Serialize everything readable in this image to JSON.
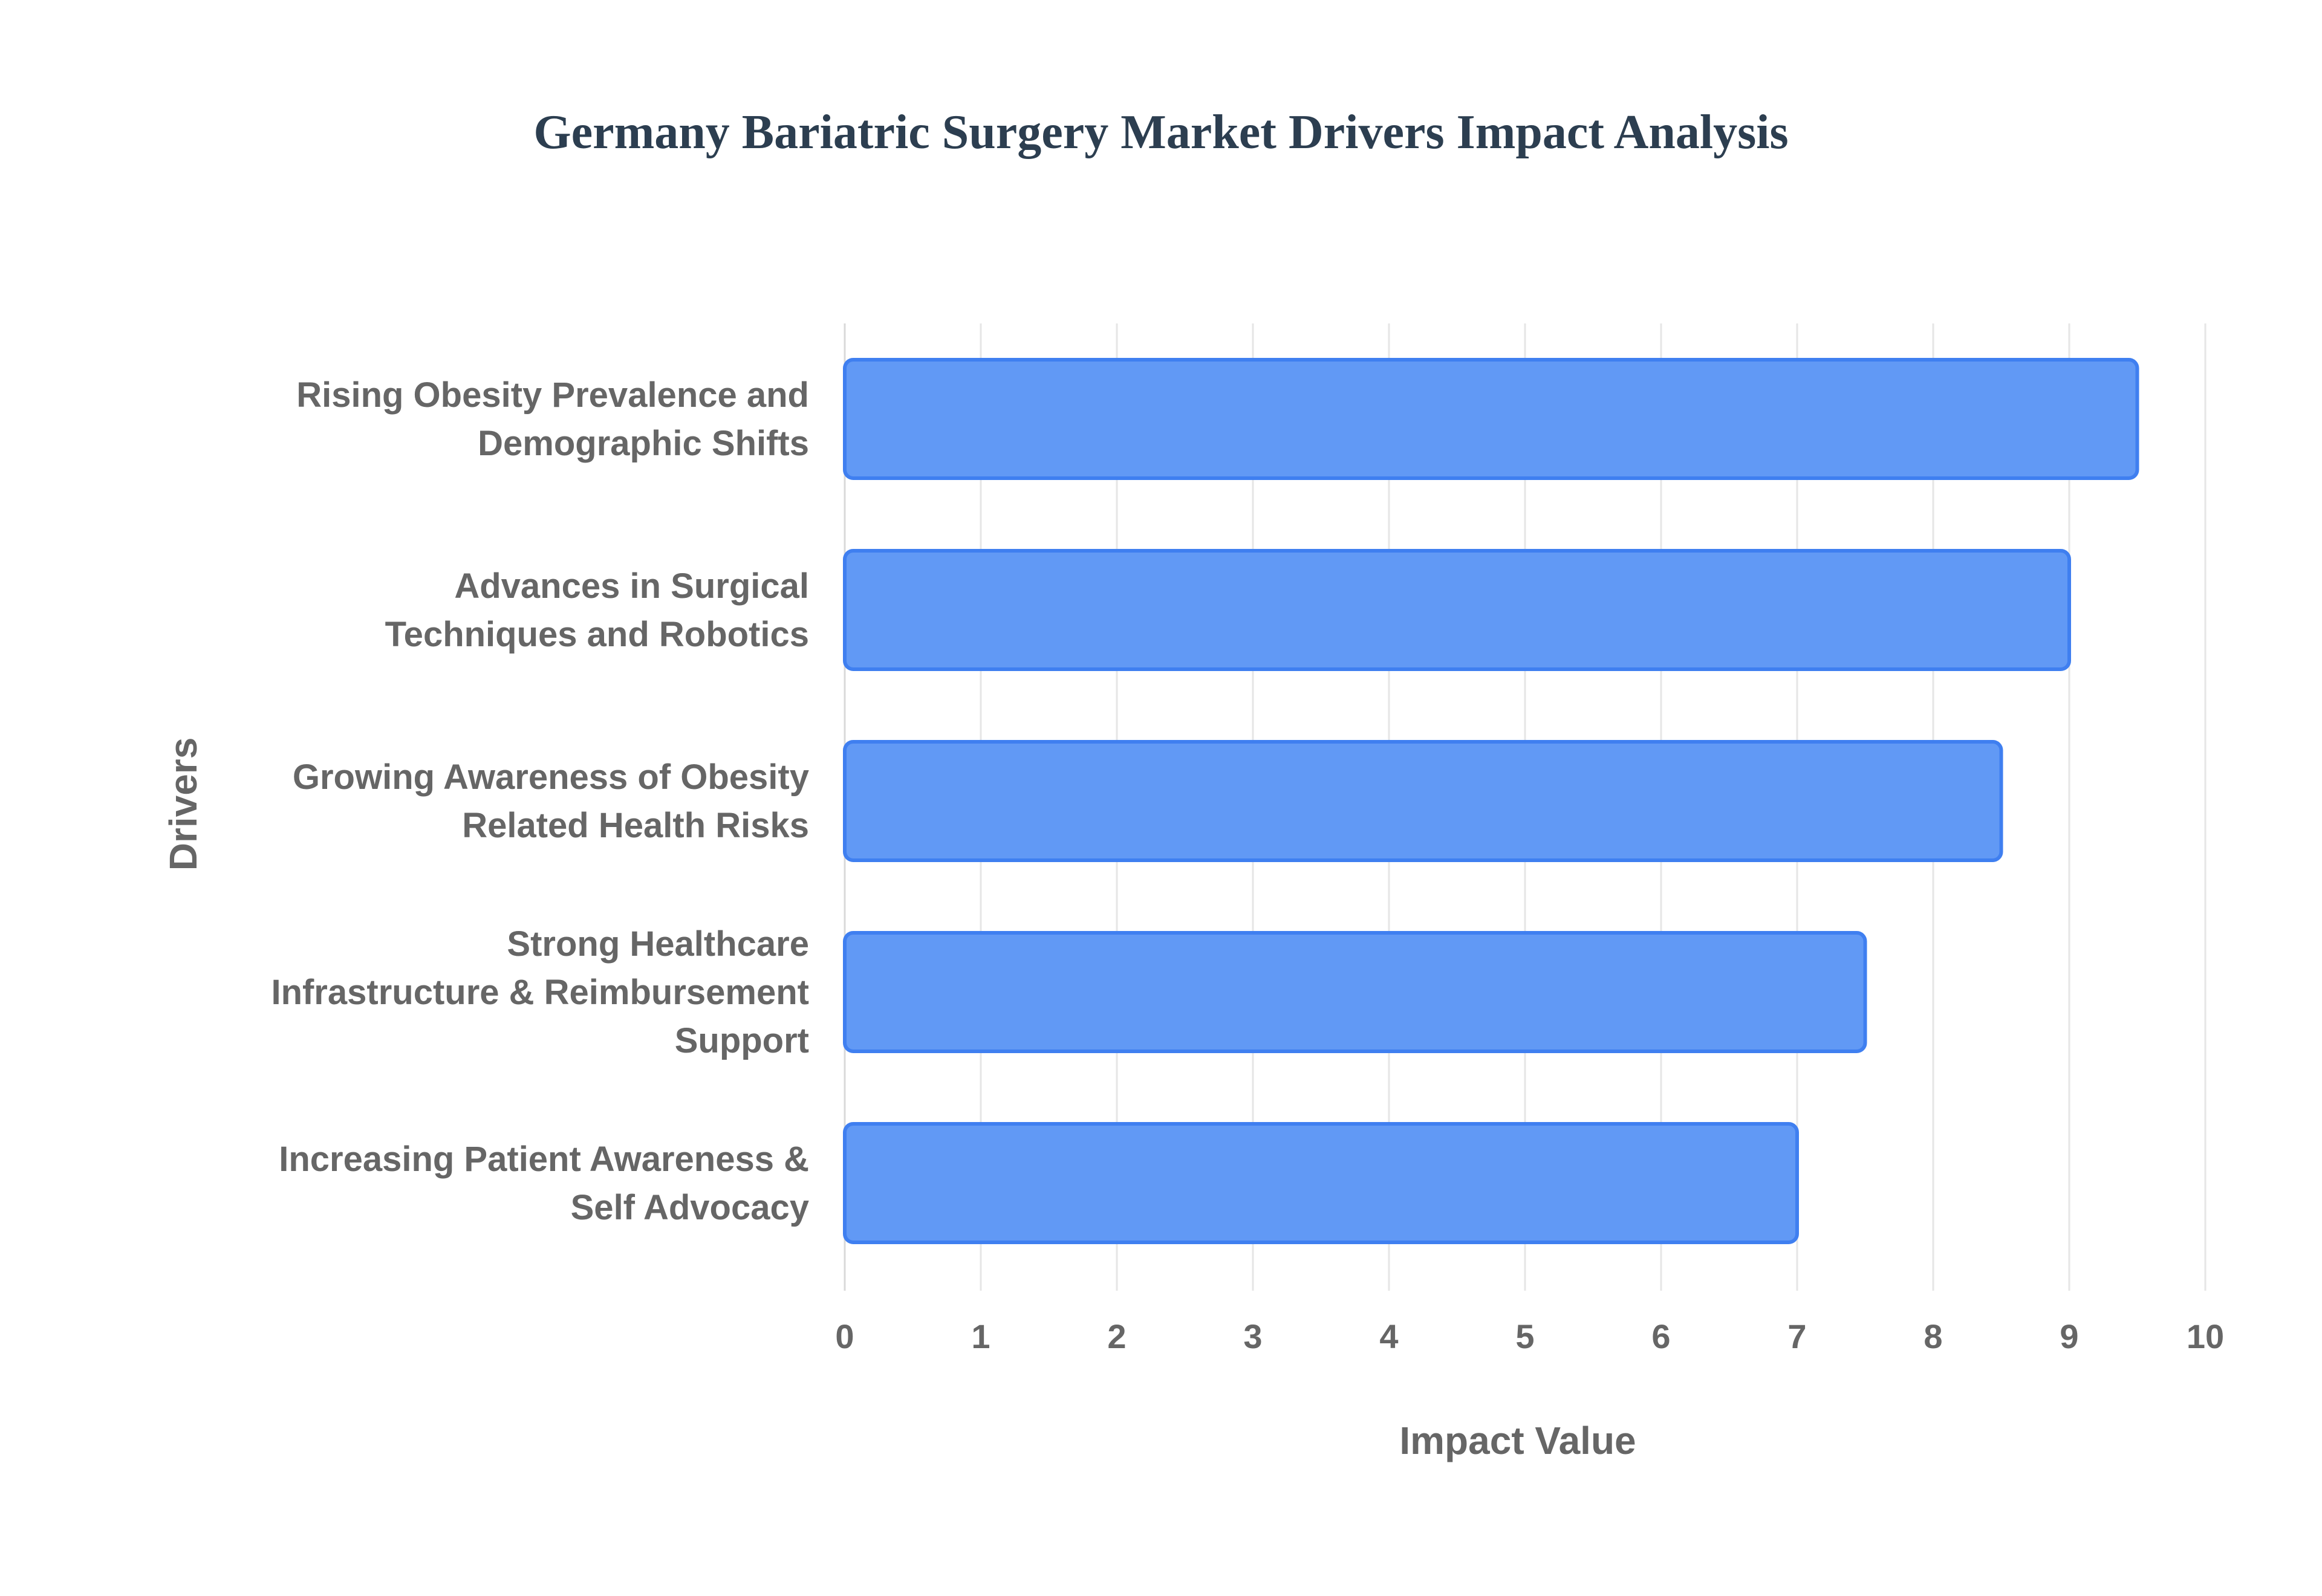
{
  "chart_data": {
    "type": "bar",
    "orientation": "horizontal",
    "title": "Germany Bariatric Surgery Market Drivers Impact Analysis",
    "xlabel": "Impact Value",
    "ylabel": "Drivers",
    "xlim": [
      0,
      10
    ],
    "x_ticks": [
      "0",
      "1",
      "2",
      "3",
      "4",
      "5",
      "6",
      "7",
      "8",
      "9",
      "10"
    ],
    "grid": true,
    "categories": [
      [
        "Rising Obesity Prevalence and",
        "Demographic Shifts"
      ],
      [
        "Advances in Surgical",
        "Techniques and Robotics"
      ],
      [
        "Growing Awareness of Obesity",
        "Related Health Risks"
      ],
      [
        "Strong Healthcare",
        "Infrastructure & Reimbursement",
        "Support"
      ],
      [
        "Increasing Patient Awareness &",
        "Self Advocacy"
      ]
    ],
    "values": [
      9.5,
      9.0,
      8.5,
      7.5,
      7.0
    ],
    "colors": {
      "bar_fill": "#6199f5",
      "bar_stroke": "#3f7ff0",
      "grid": "#e6e6e6",
      "text": "#666666",
      "title": "#2c3e50"
    }
  }
}
